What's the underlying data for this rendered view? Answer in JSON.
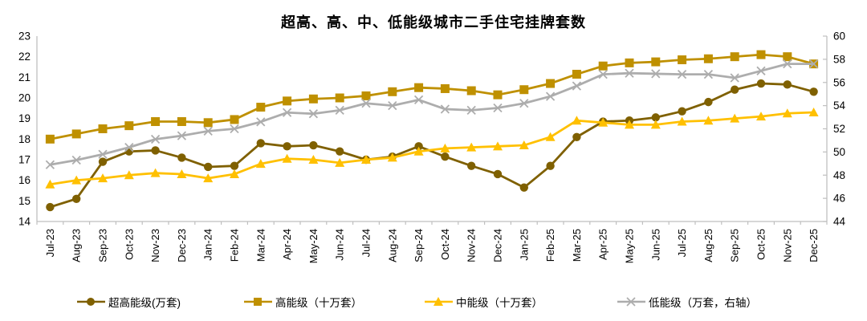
{
  "title": "超高、高、中、低能级城市二手住宅挂牌套数",
  "colors": {
    "ultra": "#7F6000",
    "high": "#BF9000",
    "mid": "#FFC000",
    "low": "#ADADAD",
    "axis_line": "#BFBFBF",
    "text": "#000000",
    "background": "#FFFFFF"
  },
  "chart_data": {
    "type": "line",
    "title": "超高、高、中、低能级城市二手住宅挂牌套数",
    "grid": false,
    "legend_position": "bottom",
    "categories": [
      "Jul-23",
      "Aug-23",
      "Sep-23",
      "Oct-23",
      "Nov-23",
      "Dec-23",
      "Jan-24",
      "Feb-24",
      "Mar-24",
      "Apr-24",
      "May-24",
      "Jun-24",
      "Jul-24",
      "Aug-24",
      "Sep-24",
      "Oct-24",
      "Nov-24",
      "Dec-24",
      "Jan-25",
      "Feb-25",
      "Mar-25",
      "Apr-25",
      "May-25",
      "Jun-25",
      "Jul-25",
      "Aug-25",
      "Sep-25",
      "Oct-25",
      "Nov-25",
      "Dec-25"
    ],
    "left_axis": {
      "min": 14,
      "max": 23,
      "ticks": [
        23,
        22,
        21,
        20,
        19,
        18,
        17,
        16,
        15,
        14
      ]
    },
    "right_axis": {
      "min": 44,
      "max": 60,
      "ticks": [
        60,
        58,
        56,
        54,
        52,
        50,
        48,
        46,
        44
      ]
    },
    "series": [
      {
        "name": "超高能级(万套)",
        "key": "ultra",
        "axis": "left",
        "marker": "circle",
        "color": "#7F6000",
        "values": [
          14.7,
          15.1,
          16.9,
          17.4,
          17.45,
          17.1,
          16.65,
          16.7,
          17.8,
          17.65,
          17.7,
          17.4,
          17.0,
          17.15,
          17.65,
          17.15,
          16.7,
          16.3,
          15.65,
          16.7,
          18.1,
          18.85,
          18.9,
          19.05,
          19.35,
          19.8,
          20.4,
          20.7,
          20.65,
          20.3
        ]
      },
      {
        "name": "高能级（十万套）",
        "key": "high",
        "axis": "left",
        "marker": "square",
        "color": "#BF9000",
        "values": [
          18.0,
          18.25,
          18.5,
          18.65,
          18.85,
          18.85,
          18.8,
          18.95,
          19.55,
          19.85,
          19.95,
          20.0,
          20.1,
          20.3,
          20.5,
          20.45,
          20.35,
          20.15,
          20.4,
          20.7,
          21.15,
          21.55,
          21.7,
          21.75,
          21.85,
          21.9,
          22.0,
          22.1,
          22.0,
          21.65
        ]
      },
      {
        "name": "中能级（十万套）",
        "key": "mid",
        "axis": "left",
        "marker": "triangle",
        "color": "#FFC000",
        "values": [
          15.8,
          16.0,
          16.1,
          16.25,
          16.35,
          16.3,
          16.1,
          16.3,
          16.8,
          17.05,
          17.0,
          16.85,
          17.0,
          17.1,
          17.4,
          17.55,
          17.6,
          17.65,
          17.7,
          18.1,
          18.9,
          18.8,
          18.7,
          18.7,
          18.85,
          18.9,
          19.0,
          19.1,
          19.25,
          19.3
        ]
      },
      {
        "name": "低能级（万套，右轴）",
        "key": "low",
        "axis": "right",
        "marker": "x",
        "color": "#ADADAD",
        "values": [
          48.9,
          49.3,
          49.8,
          50.4,
          51.1,
          51.4,
          51.8,
          52.0,
          52.6,
          53.4,
          53.3,
          53.6,
          54.2,
          54.0,
          54.5,
          53.7,
          53.6,
          53.8,
          54.2,
          54.8,
          55.7,
          56.7,
          56.8,
          56.75,
          56.7,
          56.7,
          56.4,
          57.0,
          57.6,
          57.6
        ]
      }
    ]
  }
}
